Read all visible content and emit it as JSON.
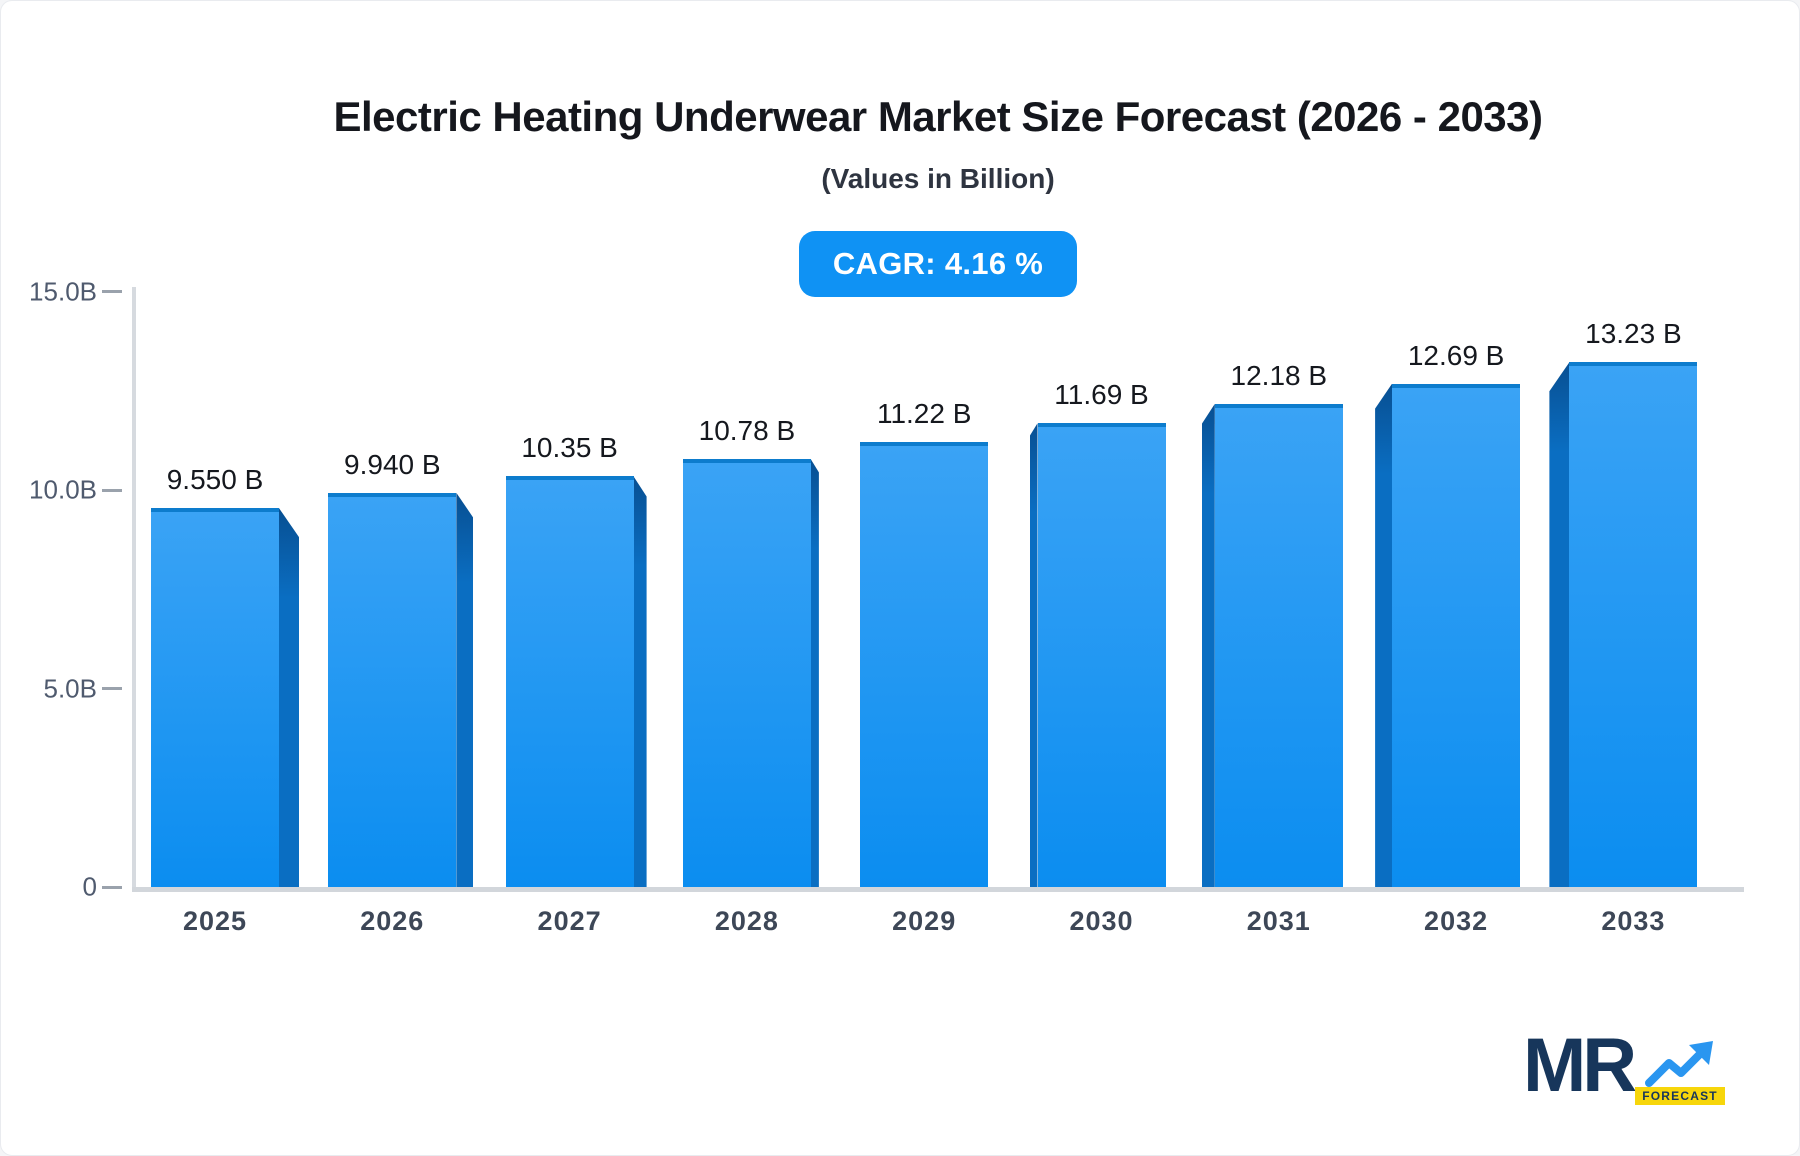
{
  "header": {
    "title": "Electric Heating Underwear Market Size Forecast (2026 - 2033)",
    "subtitle": "(Values in Billion)",
    "cagr_badge": "CAGR: 4.16 %"
  },
  "chart_data": {
    "type": "bar",
    "title": "Electric Heating Underwear Market Size Forecast (2026 - 2033)",
    "subtitle": "(Values in Billion)",
    "categories": [
      "2025",
      "2026",
      "2027",
      "2028",
      "2029",
      "2030",
      "2031",
      "2032",
      "2033"
    ],
    "values": [
      9.55,
      9.94,
      10.35,
      10.78,
      11.22,
      11.69,
      12.18,
      12.69,
      13.23
    ],
    "bar_labels": [
      "9.550 B",
      "9.940 B",
      "10.35 B",
      "10.78 B",
      "11.22 B",
      "11.69 B",
      "12.18 B",
      "12.69 B",
      "13.23 B"
    ],
    "y_ticks": [
      {
        "value": 0,
        "label": "0"
      },
      {
        "value": 5,
        "label": "5.0B"
      },
      {
        "value": 10,
        "label": "10.0B"
      },
      {
        "value": 15,
        "label": "15.0B"
      }
    ],
    "ylim": [
      0,
      15
    ],
    "xlabel": "",
    "ylabel": "",
    "grid": false,
    "legend": false,
    "annotation": "CAGR: 4.16 %"
  },
  "colors": {
    "bar_face_top": "#3aa3f5",
    "bar_face_bottom": "#0b8df0",
    "bar_top_edge": "#0d7ccd",
    "bar_side": "#0a6ec2",
    "bar_side_dark": "#084f92",
    "badge_bg": "#0f92f4",
    "axis_line": "#d6dadf",
    "logo_navy": "#17365b",
    "logo_blue": "#2a96f0",
    "logo_yellow": "#f7d60b"
  },
  "logo": {
    "mr": "MR",
    "forecast": "FORECAST",
    "arrow_icon": "trend-up-arrow-icon"
  }
}
